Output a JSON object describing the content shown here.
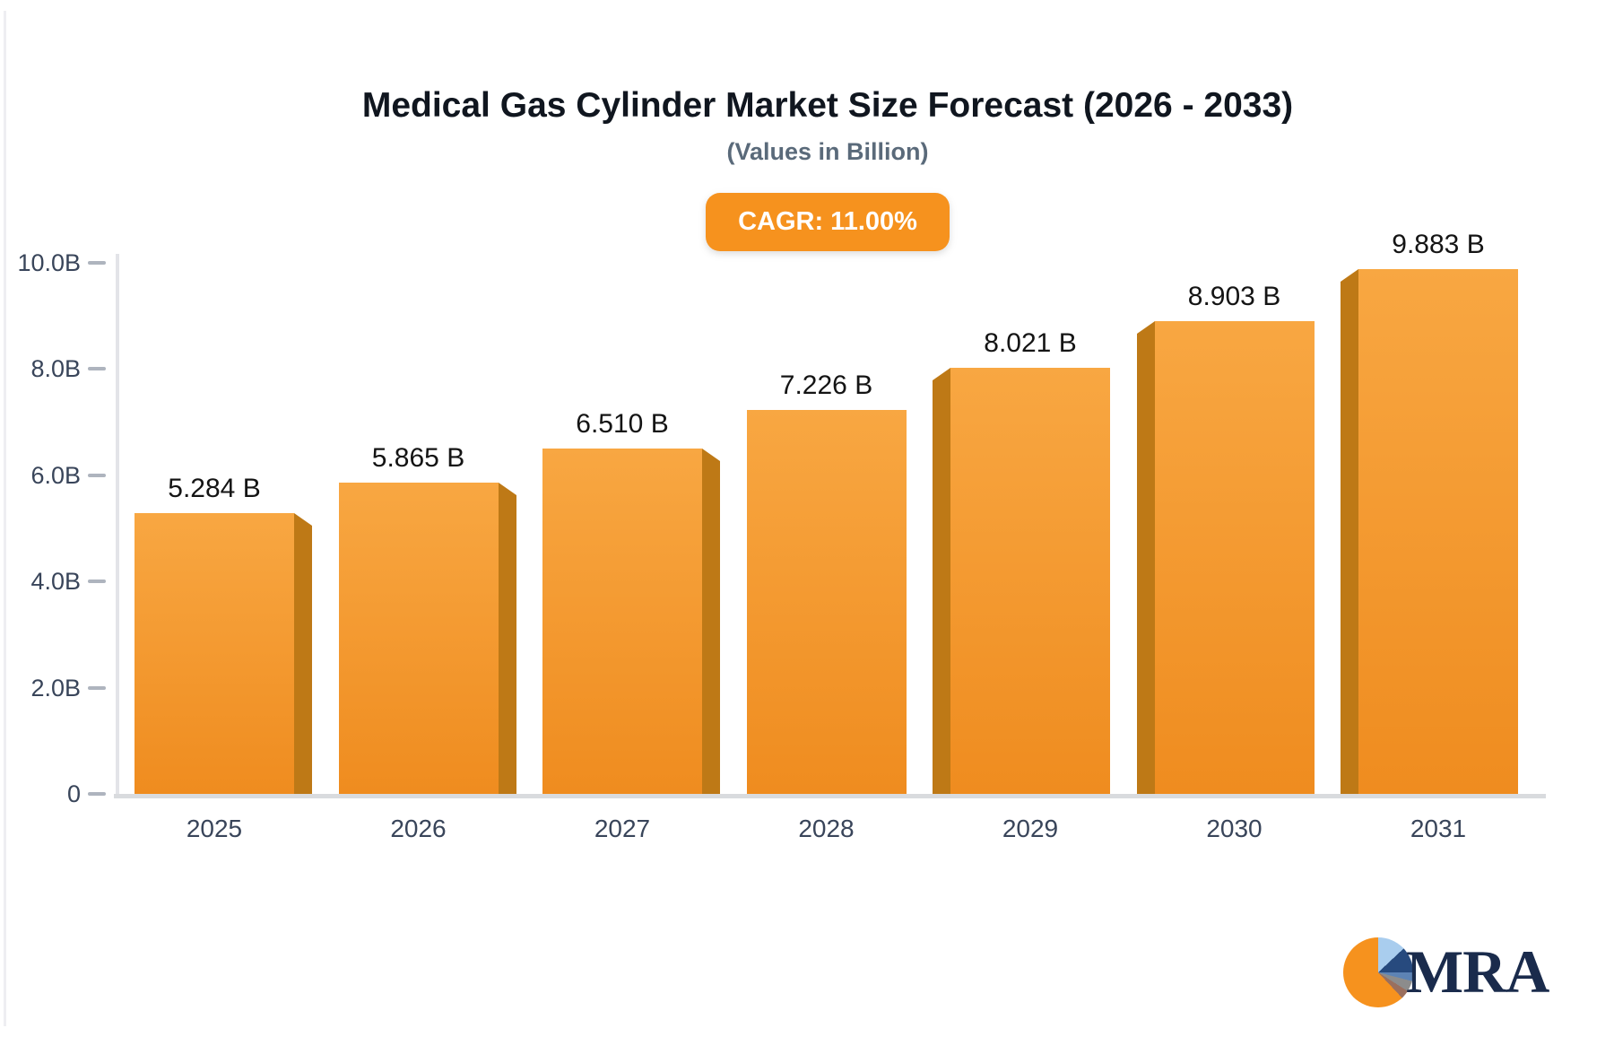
{
  "header": {
    "title": "Medical Gas Cylinder Market Size Forecast (2026 - 2033)",
    "subtitle": "(Values in Billion)",
    "cagr_badge": "CAGR: 11.00%"
  },
  "badge": {
    "label": "CAGR: 11.00%",
    "color": "#f6921e"
  },
  "logo": {
    "text": "MRA"
  },
  "chart_data": {
    "type": "bar",
    "title": "Medical Gas Cylinder Market Size Forecast (2026 - 2033)",
    "subtitle": "(Values in Billion)",
    "annotation": "CAGR: 11.00%",
    "categories": [
      "2025",
      "2026",
      "2027",
      "2028",
      "2029",
      "2030",
      "2031"
    ],
    "values": [
      5.284,
      5.865,
      6.51,
      7.226,
      8.021,
      8.903,
      9.883
    ],
    "value_labels": [
      "5.284 B",
      "5.865 B",
      "6.510 B",
      "7.226 B",
      "8.021 B",
      "8.903 B",
      "9.883 B"
    ],
    "xlabel": "",
    "ylabel": "",
    "ylim": [
      0,
      10
    ],
    "yticks": [
      {
        "value": 10,
        "label": "10.0B"
      },
      {
        "value": 8,
        "label": "8.0B"
      },
      {
        "value": 6,
        "label": "6.0B"
      },
      {
        "value": 4,
        "label": "4.0B"
      },
      {
        "value": 2,
        "label": "2.0B"
      },
      {
        "value": 0,
        "label": "0"
      }
    ],
    "grid": false,
    "legend": false,
    "colors": {
      "bar_face_top": "#f8a742",
      "bar_face_bottom": "#ef8c1f",
      "bar_side": "#be7916",
      "axis_line": "#e3e4e8",
      "tick": "#aeb4be",
      "label": "#39455a"
    }
  }
}
